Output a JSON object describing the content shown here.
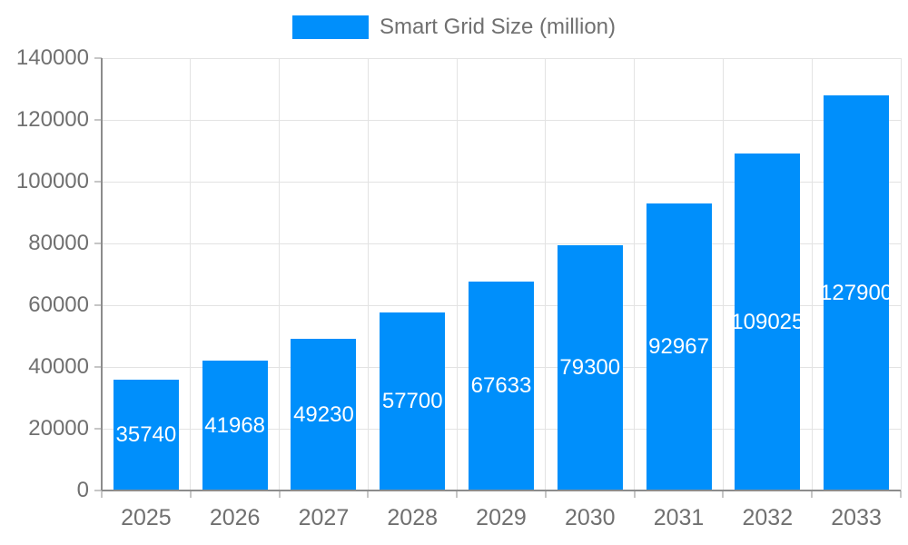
{
  "chart_data": {
    "type": "bar",
    "title": "",
    "legend": {
      "label": "Smart Grid Size (million)",
      "position": "top"
    },
    "categories": [
      "2025",
      "2026",
      "2027",
      "2028",
      "2029",
      "2030",
      "2031",
      "2032",
      "2033"
    ],
    "series": [
      {
        "name": "Smart Grid Size (million)",
        "values": [
          35740,
          41968,
          49230,
          57700,
          67633,
          79300,
          92967,
          109025,
          127900
        ],
        "data_labels": [
          "35740",
          "41968",
          "49230",
          "57700",
          "67633",
          "79300",
          "92967",
          "109025",
          "127900"
        ]
      }
    ],
    "xlabel": "",
    "ylabel": "",
    "ylim": [
      0,
      140000
    ],
    "ytick_values": [
      0,
      20000,
      40000,
      60000,
      80000,
      100000,
      120000,
      140000
    ],
    "ytick_labels": [
      "0",
      "20000",
      "40000",
      "60000",
      "80000",
      "100000",
      "120000",
      "140000"
    ],
    "grid": "both",
    "colors": {
      "bar": "#008FFB",
      "bar_label": "#FFFFFF",
      "axis_text": "#707070",
      "grid_line": "#E3E3E3",
      "axis_line": "#8C8C8C",
      "tick": "#C6C6C6",
      "background": "#FFFFFF"
    }
  }
}
